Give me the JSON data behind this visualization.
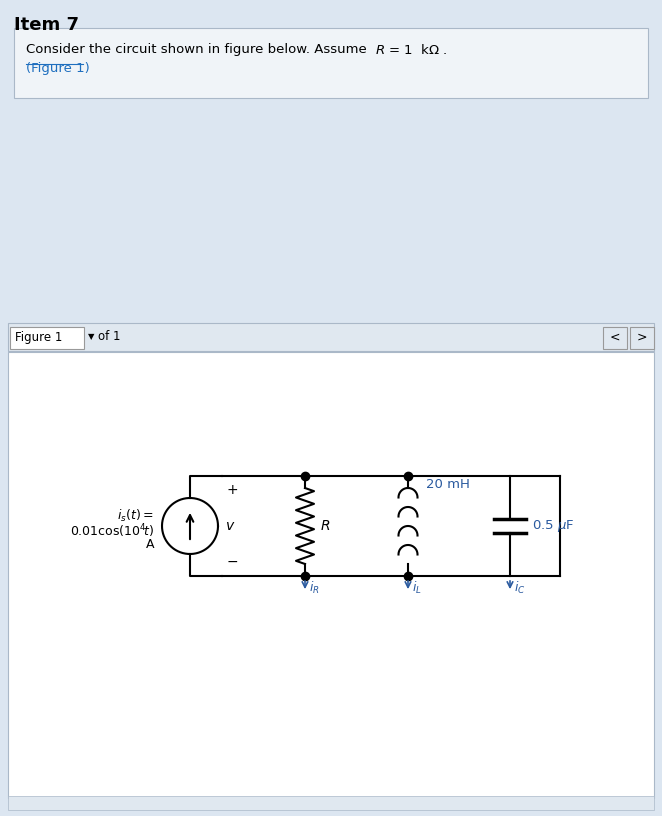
{
  "bg_color": "#dce6f1",
  "text_color": "#000000",
  "blue_color": "#2a5a9f",
  "link_color": "#1f6fbf",
  "circuit_bg": "#ffffff",
  "panel_bg": "#e0e8f0",
  "box_bg": "#f0f4f8",
  "title": "Item 7",
  "problem_text": "Consider the circuit shown in figure below. Assume",
  "R_eq": " R = 1  kΩ .",
  "figure_link": "(Figure 1)",
  "figure_label": "Figure 1",
  "of_label": "of 1",
  "R_label": "R",
  "L_label": "20 mH",
  "C_label": "0.5 μF",
  "v_label": "v",
  "iR_label": "i_R",
  "iL_label": "i_L",
  "iC_label": "i_C",
  "plus_label": "+",
  "minus_label": "−",
  "source_line1": "i_s(t) =",
  "source_line2": "0.01 cos(10⁴t)",
  "source_line3": "A"
}
